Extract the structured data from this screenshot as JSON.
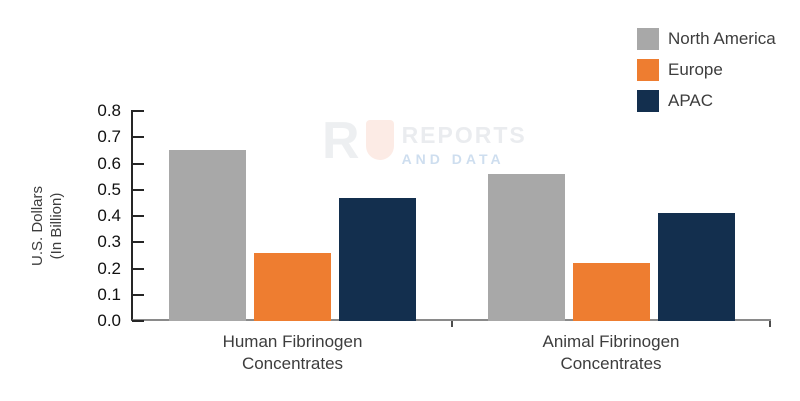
{
  "chart_data": {
    "type": "bar",
    "title": "",
    "categories": [
      "Human Fibrinogen Concentrates",
      "Animal Fibrinogen Concentrates"
    ],
    "series": [
      {
        "name": "North America",
        "color": "#a8a8a8",
        "values": [
          0.65,
          0.56
        ]
      },
      {
        "name": "Europe",
        "color": "#ee7d30",
        "values": [
          0.26,
          0.22
        ]
      },
      {
        "name": "APAC",
        "color": "#132f4e",
        "values": [
          0.47,
          0.41
        ]
      }
    ],
    "xlabel": "",
    "ylabel": "U.S. Dollars (In Billion)",
    "ylabel_lines": [
      "U.S. Dollars",
      "(In Billion)"
    ],
    "ylim": [
      0,
      0.8
    ],
    "yticks": [
      "0.0",
      "0.1",
      "0.2",
      "0.3",
      "0.4",
      "0.5",
      "0.6",
      "0.7",
      "0.8"
    ],
    "legend_position": "top-right",
    "grid": false
  },
  "watermark": {
    "logo_letter": "R",
    "line1": "REPORTS",
    "line2": "AND DATA"
  }
}
